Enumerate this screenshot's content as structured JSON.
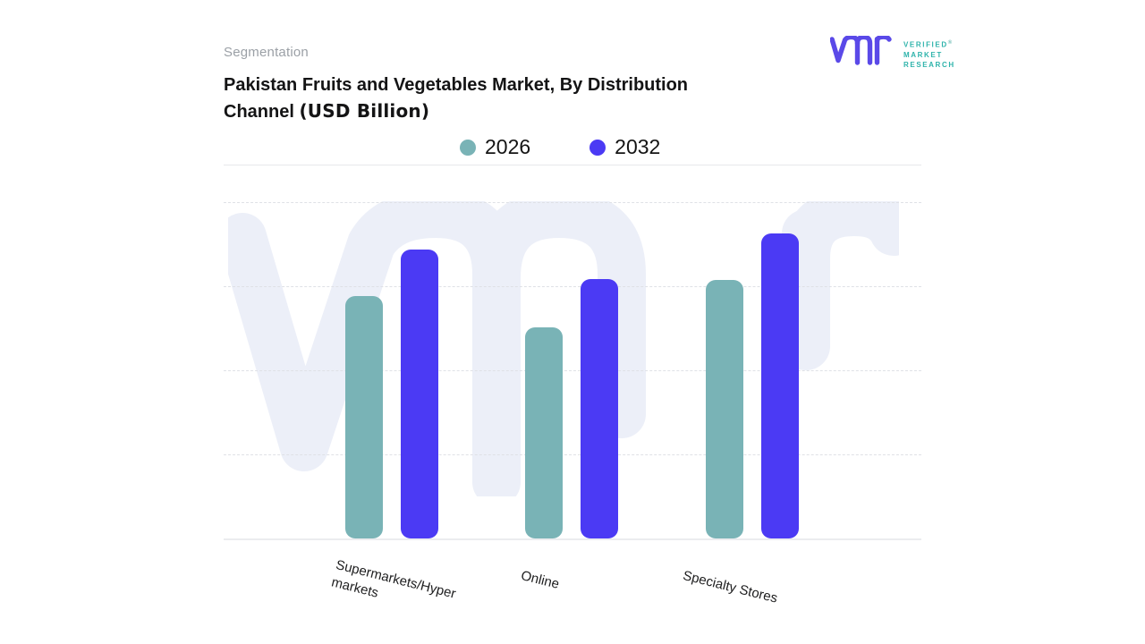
{
  "header": {
    "eyebrow": "Segmentation",
    "title_line1": "Pakistan Fruits and Vegetables Market, By Distribution",
    "title_line2": "Channel",
    "title_units": "(USD Billion)"
  },
  "brand": {
    "name_lines": [
      "VERIFIED",
      "MARKET",
      "RESEARCH"
    ],
    "registered": "®",
    "glyph_color": "#5A49E8",
    "text_color": "#2EB3AB"
  },
  "legend": {
    "items": [
      {
        "label": "2026",
        "color": "#79B3B6"
      },
      {
        "label": "2032",
        "color": "#4B3AF4"
      }
    ]
  },
  "chart_data": {
    "type": "bar",
    "title": "Pakistan Fruits and Vegetables Market, By Distribution Channel (USD Billion)",
    "units": "USD Billion",
    "categories": [
      "Supermarkets/Hypermarkets",
      "Online",
      "Specialty Stores"
    ],
    "series": [
      {
        "name": "2026",
        "color": "#79B3B6",
        "values": [
          2.88,
          2.51,
          3.07
        ]
      },
      {
        "name": "2032",
        "color": "#4B3AF4",
        "values": [
          3.44,
          3.09,
          3.63
        ]
      }
    ],
    "xlabel": "",
    "ylabel": "",
    "ylim": [
      0,
      4
    ],
    "y_tick_labels_visible": false,
    "x_tick_labels_visible": true,
    "x_label_rotation_deg": 14,
    "grid": "horizontal dashed lines, no axis tick labels",
    "legend_position": "top-center",
    "note": "values estimated in gridline units; y axis is unlabeled",
    "background_watermark": "vmr logo",
    "colors": {
      "series_2026": "#79B3B6",
      "series_2032": "#4B3AF4",
      "watermark": "#ECEFF8"
    }
  }
}
